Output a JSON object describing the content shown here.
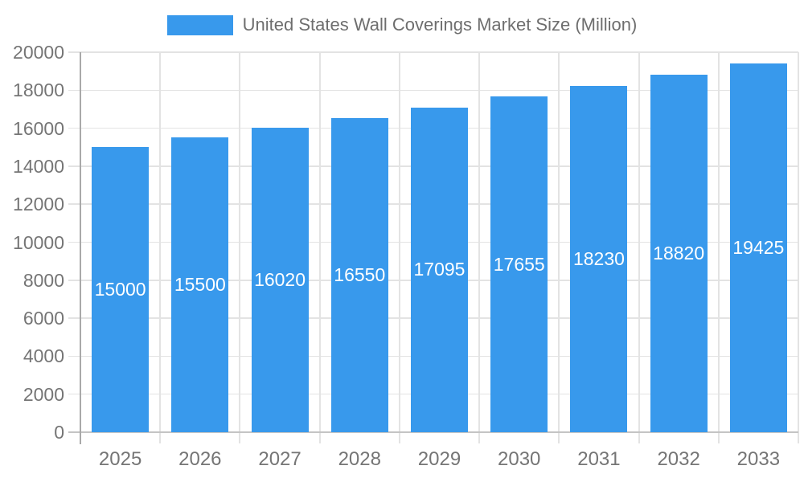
{
  "chart_data": {
    "type": "bar",
    "title": "United States Wall Coverings Market Size (Million)",
    "categories": [
      "2025",
      "2026",
      "2027",
      "2028",
      "2029",
      "2030",
      "2031",
      "2032",
      "2033"
    ],
    "values": [
      15000,
      15500,
      16020,
      16550,
      17095,
      17655,
      18230,
      18820,
      19425
    ],
    "value_labels": [
      "15000",
      "15500",
      "16020",
      "16550",
      "17095",
      "17655",
      "18230",
      "18820",
      "19425"
    ],
    "yticks": [
      0,
      2000,
      4000,
      6000,
      8000,
      10000,
      12000,
      14000,
      16000,
      18000,
      20000
    ],
    "ylim": [
      0,
      20000
    ],
    "xlabel": "",
    "ylabel": "",
    "grid": true,
    "legend_position": "top-center",
    "bar_color": "#3899ec",
    "value_label_color": "#ffffff",
    "axis_text_color": "#757575",
    "title_text_color": "#6e6e6e",
    "grid_color": "#e3e3e3",
    "y_axis_line_color": "#a9a9a9",
    "x_axis_line_color": "#c4c4c4",
    "background_color": "#ffffff"
  }
}
